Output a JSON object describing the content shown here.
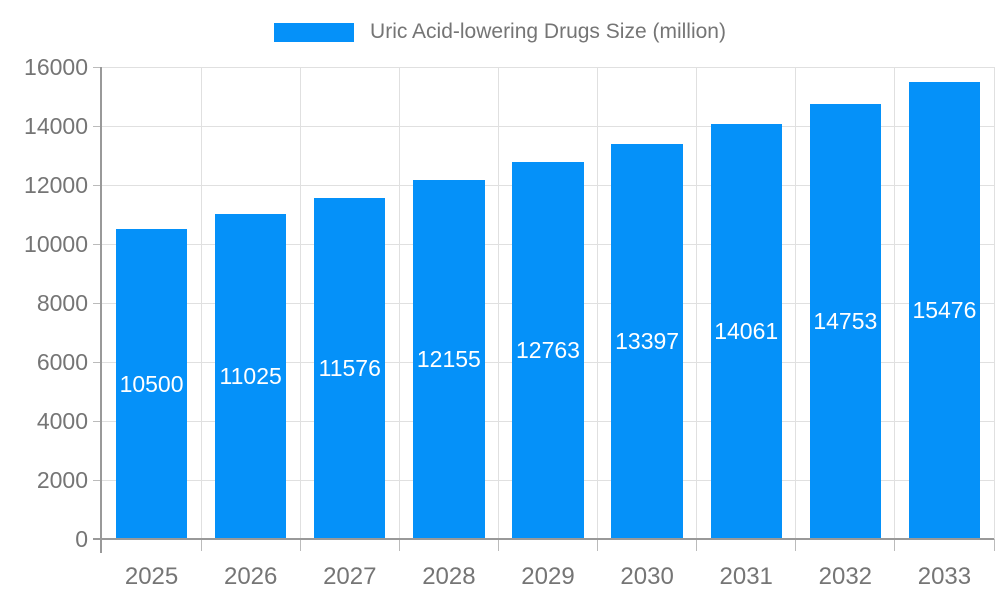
{
  "legend": {
    "label": "Uric Acid-lowering Drugs Size (million)"
  },
  "chart_data": {
    "type": "bar",
    "title": "Uric Acid-lowering Drugs Size (million)",
    "categories": [
      "2025",
      "2026",
      "2027",
      "2028",
      "2029",
      "2030",
      "2031",
      "2032",
      "2033"
    ],
    "values": [
      10500,
      11025,
      11576,
      12155,
      12763,
      13397,
      14061,
      14753,
      15476
    ],
    "xlabel": "",
    "ylabel": "",
    "ylim": [
      0,
      16000
    ],
    "ytick_step": 2000,
    "ytick_labels": [
      "0",
      "2000",
      "4000",
      "6000",
      "8000",
      "10000",
      "12000",
      "14000",
      "16000"
    ],
    "grid": true,
    "legend_position": "top-center",
    "value_labels_inside_bars": true,
    "colors": {
      "bar": "#0591f9",
      "bar_value_text": "#ffffff",
      "axis_line": "#999999",
      "grid_line": "#e0e0e0",
      "tick_mark": "#bbbbbb",
      "tick_text": "#757575",
      "legend_text": "#757575",
      "background": "#ffffff"
    }
  }
}
